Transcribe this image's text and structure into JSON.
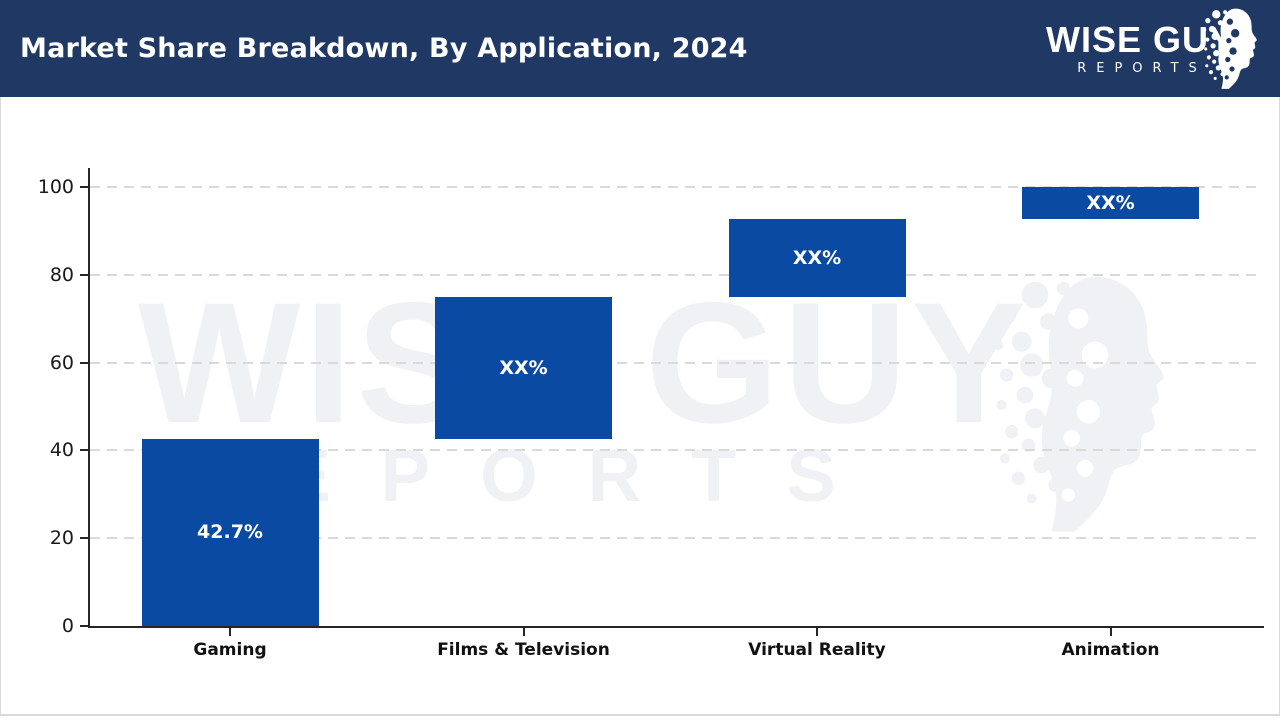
{
  "header": {
    "title": "Market Share Breakdown, By Application, 2024",
    "background_color": "#1f3864",
    "logo": {
      "line1": "WISE GUY",
      "line2": "REPORTS"
    }
  },
  "watermark": {
    "line1": "WISE GUY",
    "line2": "REPORTS"
  },
  "chart_data": {
    "type": "bar",
    "subtype": "floating-waterfall",
    "title": "Market Share Breakdown, By Application, 2024",
    "categories": [
      "Gaming",
      "Films & Television",
      "Virtual Reality",
      "Animation"
    ],
    "bars": [
      {
        "category": "Gaming",
        "start": 0,
        "end": 42.7,
        "label": "42.7%"
      },
      {
        "category": "Films & Television",
        "start": 42.7,
        "end": 75,
        "label": "XX%"
      },
      {
        "category": "Virtual Reality",
        "start": 75,
        "end": 92.7,
        "label": "XX%"
      },
      {
        "category": "Animation",
        "start": 92.7,
        "end": 100,
        "label": "XX%"
      }
    ],
    "ylim": [
      0,
      100
    ],
    "yticks": [
      0,
      20,
      40,
      60,
      80,
      100
    ],
    "xlabel": "",
    "ylabel": "",
    "legend": null,
    "grid": {
      "orientation": "horizontal",
      "style": "dashed",
      "color": "#d9d9d9"
    },
    "bar_color": "#0b4aa2",
    "label_color": "#ffffff"
  },
  "colors": {
    "header_navy": "#1f3864",
    "bar_blue": "#0b4aa2",
    "axis": "#262626",
    "grid": "#d9d9d9",
    "watermark": "#f0f1f4"
  }
}
